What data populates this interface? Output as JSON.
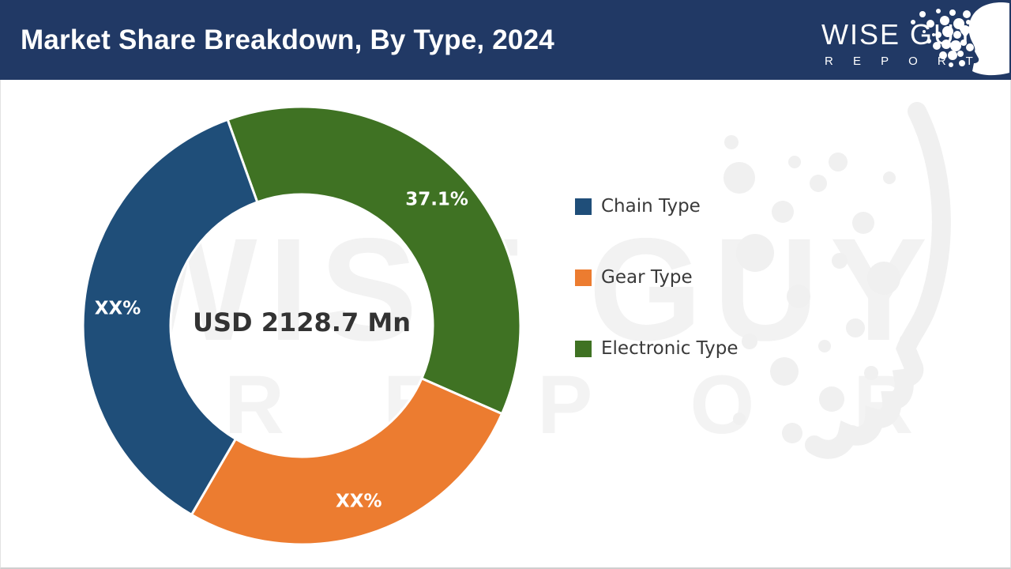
{
  "page": {
    "header_bg": "#213965",
    "body_bg": "#ffffff",
    "border_color": "#cfcfcf"
  },
  "header": {
    "title": "Market Share Breakdown, By Type, 2024",
    "logo": {
      "line1": "WISE GUY",
      "line2": "R E P O R T S"
    }
  },
  "chart_data": {
    "type": "pie",
    "subtype": "donut",
    "title": "Market Share Breakdown, By Type, 2024",
    "center_label": "USD 2128.7 Mn",
    "legend_position": "right",
    "geometry": {
      "outer_radius": 277,
      "inner_radius": 166,
      "label_radius": 234,
      "start_angle_deg_from_top": -19.8,
      "segment_gap_stroke": "#ffffff",
      "label_color": "#ffffff"
    },
    "segments": [
      {
        "name": "Electronic Type",
        "pct": 37.1,
        "label": "37.1%",
        "color": "#3f7223"
      },
      {
        "name": "Gear Type",
        "pct": 26.8,
        "label": "XX%",
        "color": "#ec7c30"
      },
      {
        "name": "Chain Type",
        "pct": 36.1,
        "label": "XX%",
        "color": "#1f4e79"
      }
    ]
  },
  "legend": {
    "items": [
      {
        "label": "Chain Type",
        "color": "#1f4e79"
      },
      {
        "label": "Gear Type",
        "color": "#ec7c30"
      },
      {
        "label": "Electronic Type",
        "color": "#3f7223"
      }
    ]
  },
  "watermark": {
    "line1": "WISE GUY",
    "line2": "R E P O R T S"
  }
}
